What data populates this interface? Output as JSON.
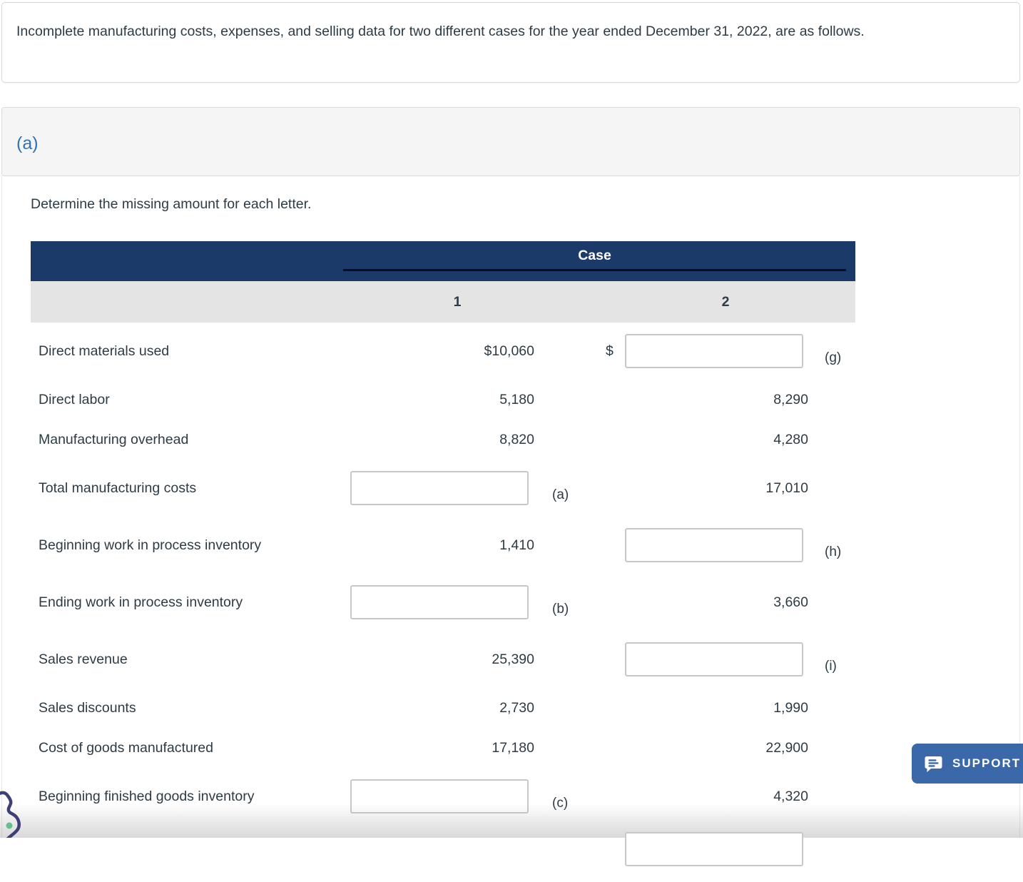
{
  "problem_statement": "Incomplete manufacturing costs, expenses, and selling data for two different cases for the year ended December 31, 2022, are as follows.",
  "section": {
    "label": "(a)"
  },
  "instruction": "Determine the missing amount for each letter.",
  "table": {
    "group_header": "Case",
    "columns": [
      "1",
      "2"
    ],
    "rows": [
      {
        "label": "Direct materials used",
        "case1": {
          "type": "value",
          "text": "$10,060"
        },
        "case2": {
          "type": "input",
          "prefix": "$",
          "letter": "(g)",
          "value": ""
        }
      },
      {
        "label": "Direct labor",
        "case1": {
          "type": "value",
          "text": "5,180"
        },
        "case2": {
          "type": "value",
          "text": "8,290"
        }
      },
      {
        "label": "Manufacturing overhead",
        "case1": {
          "type": "value",
          "text": "8,820"
        },
        "case2": {
          "type": "value",
          "text": "4,280"
        }
      },
      {
        "label": "Total manufacturing costs",
        "case1": {
          "type": "input",
          "letter": "(a)",
          "value": ""
        },
        "case2": {
          "type": "value",
          "text": "17,010"
        }
      },
      {
        "label": "Beginning work in process inventory",
        "case1": {
          "type": "value",
          "text": "1,410"
        },
        "case2": {
          "type": "input",
          "letter": "(h)",
          "value": ""
        }
      },
      {
        "label": "Ending work in process inventory",
        "case1": {
          "type": "input",
          "letter": "(b)",
          "value": ""
        },
        "case2": {
          "type": "value",
          "text": "3,660"
        }
      },
      {
        "label": "Sales revenue",
        "case1": {
          "type": "value",
          "text": "25,390"
        },
        "case2": {
          "type": "input",
          "letter": "(i)",
          "value": ""
        }
      },
      {
        "label": "Sales discounts",
        "case1": {
          "type": "value",
          "text": "2,730"
        },
        "case2": {
          "type": "value",
          "text": "1,990"
        }
      },
      {
        "label": "Cost of goods manufactured",
        "case1": {
          "type": "value",
          "text": "17,180"
        },
        "case2": {
          "type": "value",
          "text": "22,900"
        }
      },
      {
        "label": "Beginning finished goods inventory",
        "case1": {
          "type": "input",
          "letter": "(c)",
          "value": ""
        },
        "case2": {
          "type": "value",
          "text": "4,320"
        }
      }
    ],
    "partial_next_row": {
      "case2_input_visible": true
    }
  },
  "support": {
    "label": "SUPPORT"
  },
  "colors": {
    "table_header_navy": "#1c3a69",
    "subheader_gray": "#e4e4e5",
    "body_text": "#2d3b45",
    "section_label_blue": "#2e74b5",
    "support_blue": "#3b68a9",
    "input_border": "#c8c8c8",
    "mascot_outline": "#3f3f78",
    "mascot_dot_green": "#68bd8c"
  }
}
